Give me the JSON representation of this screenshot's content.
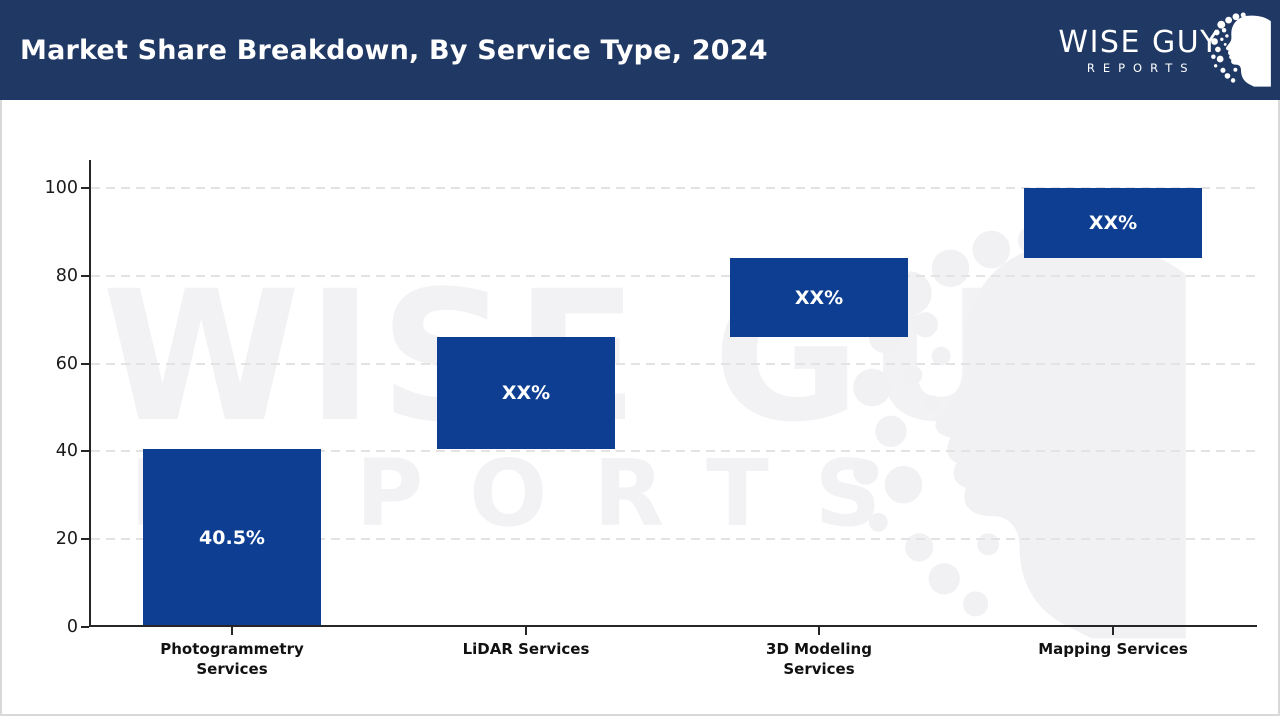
{
  "header": {
    "title": "Market Share Breakdown, By Service Type, 2024",
    "logo": {
      "wordmark": "WISE GUY",
      "subtext": "REPORTS"
    }
  },
  "watermark": {
    "wordmark": "WISE GUY",
    "subtext": "REPORTS"
  },
  "chart_data": {
    "type": "bar",
    "subtype": "waterfall",
    "title": "Market Share Breakdown, By Service Type, 2024",
    "categories": [
      "Photogrammetry Services",
      "LiDAR Services",
      "3D Modeling Services",
      "Mapping Services"
    ],
    "segments": [
      {
        "category": "Photogrammetry Services",
        "start": 0,
        "end": 40.5,
        "label": "40.5%"
      },
      {
        "category": "LiDAR Services",
        "start": 40.5,
        "end": 66,
        "label": "XX%"
      },
      {
        "category": "3D Modeling Services",
        "start": 66,
        "end": 84,
        "label": "XX%"
      },
      {
        "category": "Mapping Services",
        "start": 84,
        "end": 100,
        "label": "XX%"
      }
    ],
    "xlabel": "",
    "ylabel": "",
    "ylim": [
      0,
      100
    ],
    "yticks": [
      0,
      20,
      40,
      60,
      80,
      100
    ],
    "grid": "horizontal-dashed",
    "legend": "none"
  },
  "colors": {
    "header_bg": "#1f3864",
    "bar": "#0d3e92",
    "grid": "#e3e3e3",
    "axis": "#262626",
    "watermark": "#f2f2f4",
    "frame": "#d9d9d9"
  }
}
